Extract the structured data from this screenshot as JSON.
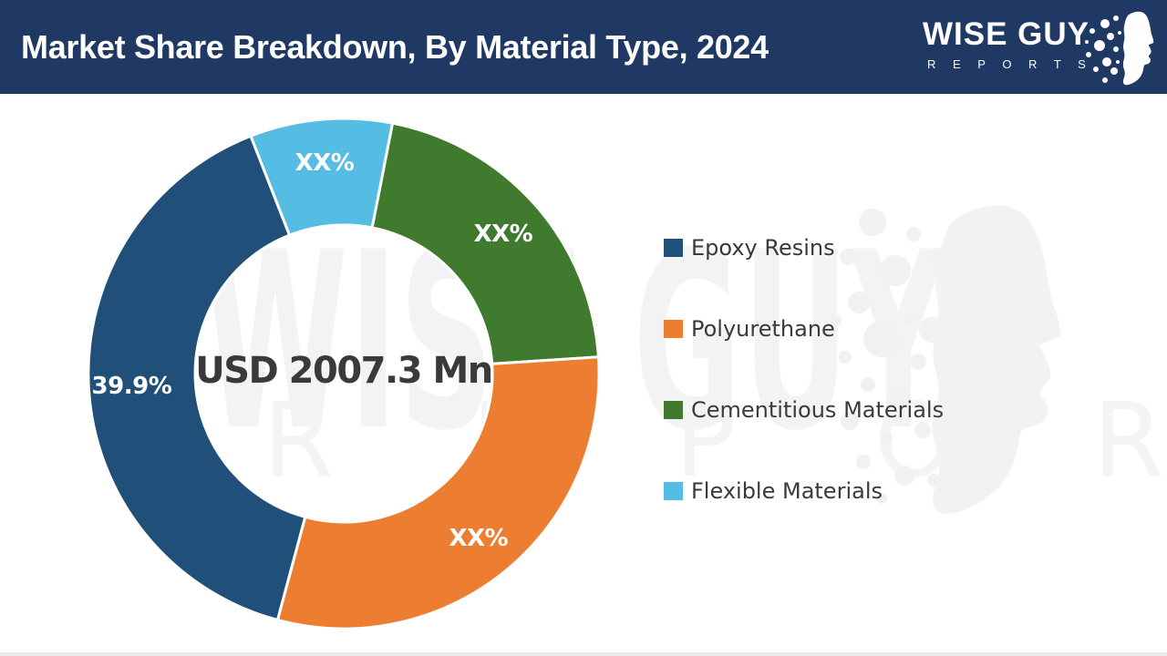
{
  "header": {
    "title": "Market Share Breakdown, By Material Type, 2024",
    "logo": {
      "line1": "WISE GUY",
      "line2": "R E P O R T S"
    }
  },
  "watermark": {
    "line1": "WISE GUY",
    "line2": "R E P O R T S"
  },
  "chart_data": {
    "type": "pie",
    "variant": "donut",
    "title": "Market Share Breakdown, By Material Type, 2024",
    "center_label": "USD 2007.3 Mn",
    "legend_position": "right",
    "start_angle_deg": 195,
    "draw_order": [
      "epoxy",
      "flexible",
      "cementitious",
      "polyurethane"
    ],
    "segments": [
      {
        "id": "epoxy",
        "label": "Epoxy Resins",
        "display_pct": "39.9%",
        "approx_pct": 39.9,
        "color": "#205079"
      },
      {
        "id": "polyurethane",
        "label": "Polyurethane",
        "display_pct": "XX%",
        "approx_pct": 30.2,
        "color": "#EC7D31"
      },
      {
        "id": "cementitious",
        "label": "Cementitious Materials",
        "display_pct": "XX%",
        "approx_pct": 20.9,
        "color": "#3F7A2E"
      },
      {
        "id": "flexible",
        "label": "Flexible Materials",
        "display_pct": "XX%",
        "approx_pct": 9.0,
        "color": "#55BDE4"
      }
    ]
  },
  "colors": {
    "header_bg": "#1F3864",
    "header_text": "#FFFFFF",
    "center_text": "#3A3A3A",
    "legend_text": "#3A3A3A",
    "segment_divider": "#FFFFFF",
    "watermark": "#F3F3F5",
    "bottom_bar": "#EAEAEA"
  }
}
